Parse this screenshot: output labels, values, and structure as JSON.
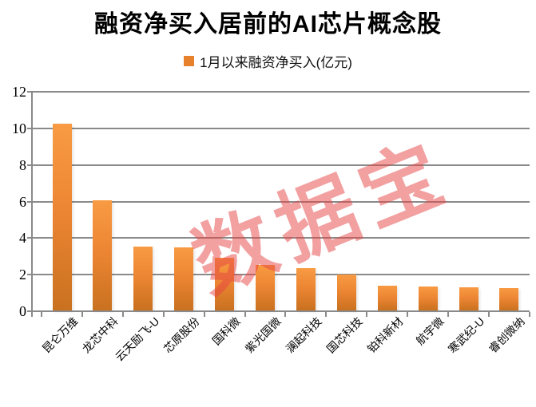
{
  "title": "融资净买入居前的AI芯片概念股",
  "legend": {
    "label": "1月以来融资净买入(亿元)",
    "swatch_color": "#E8812C"
  },
  "watermark": "数据宝",
  "colors": {
    "grid": "#8A8A8A",
    "axis": "#8A8A8A",
    "bar_top": "#F89B43",
    "bar_mid": "#ED8634",
    "bar_bottom": "#C9711F",
    "watermark": "rgba(229,65,65,0.5)",
    "title_color": "#000000",
    "label_color": "#000000"
  },
  "chart_data": {
    "type": "bar",
    "title": "融资净买入居前的AI芯片概念股",
    "legend_entries": [
      "1月以来融资净买入(亿元)"
    ],
    "legend_position": "top",
    "categories": [
      "昆仑万维",
      "龙芯中科",
      "云天励飞-U",
      "芯原股份",
      "国科微",
      "紫光国微",
      "澜起科技",
      "国芯科技",
      "铂科新材",
      "航宇微",
      "寒武纪-U",
      "睿创微纳"
    ],
    "values": [
      10.2,
      6.0,
      3.5,
      3.45,
      2.9,
      2.5,
      2.3,
      1.95,
      1.35,
      1.3,
      1.25,
      1.2
    ],
    "xlabel": "",
    "ylabel": "",
    "ylim": [
      0,
      12
    ],
    "yticks": [
      0,
      2,
      4,
      6,
      8,
      10,
      12
    ],
    "grid": true
  }
}
